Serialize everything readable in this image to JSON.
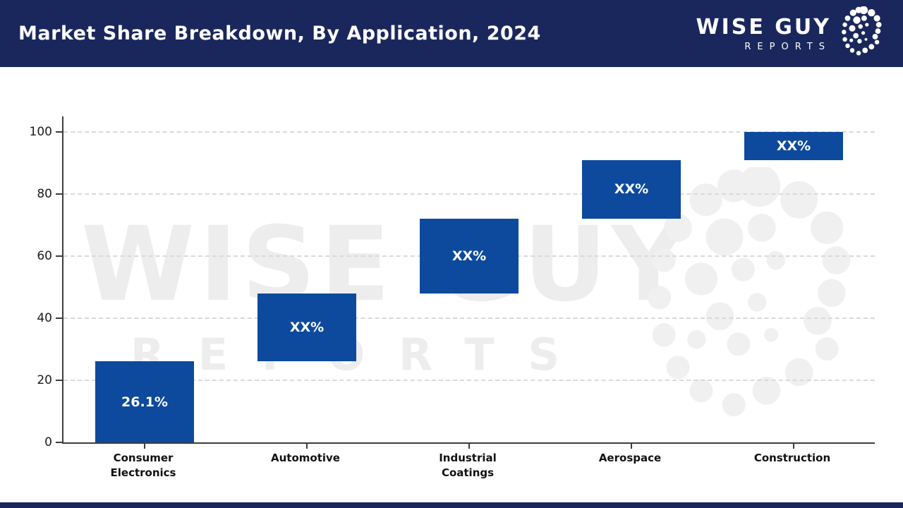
{
  "header": {
    "title": "Market Share Breakdown, By Application, 2024",
    "logo": {
      "line1": "WISE GUY",
      "line2": "REPORTS"
    }
  },
  "watermark": {
    "line1": "WISE GUY",
    "line2": "REPORTS"
  },
  "footer": {
    "label": ""
  },
  "colors": {
    "header_bg": "#19275c",
    "footer_bg": "#19275c",
    "bar_fill": "#0d4a9d",
    "bar_label_text": "#ffffff",
    "gridline": "#d9d9d9",
    "axis": "#3d3d3d",
    "tick_label": "#1c1c1c",
    "category_label": "#111111",
    "watermark_text": "#ededed"
  },
  "chart_data": {
    "type": "bar",
    "subtype": "waterfall",
    "title": "Market Share Breakdown, By Application, 2024",
    "xlabel": "",
    "ylabel": "",
    "ylim": [
      0,
      100
    ],
    "yticks": [
      0,
      20,
      40,
      60,
      80,
      100
    ],
    "grid": "horizontal-dashed",
    "legend": "none",
    "categories": [
      "Consumer Electronics",
      "Automotive",
      "Industrial Coatings",
      "Aerospace",
      "Construction"
    ],
    "category_label_lines": [
      [
        "Consumer",
        "Electronics"
      ],
      [
        "Automotive"
      ],
      [
        "Industrial",
        "Coatings"
      ],
      [
        "Aerospace"
      ],
      [
        "Construction"
      ]
    ],
    "segments": [
      {
        "category": "Consumer Electronics",
        "start": 0,
        "end": 26.1,
        "label": "26.1%"
      },
      {
        "category": "Automotive",
        "start": 26.1,
        "end": 48,
        "label": "XX%"
      },
      {
        "category": "Industrial Coatings",
        "start": 48,
        "end": 72,
        "label": "XX%"
      },
      {
        "category": "Aerospace",
        "start": 72,
        "end": 91,
        "label": "XX%"
      },
      {
        "category": "Construction",
        "start": 91,
        "end": 100,
        "label": "XX%"
      }
    ]
  }
}
